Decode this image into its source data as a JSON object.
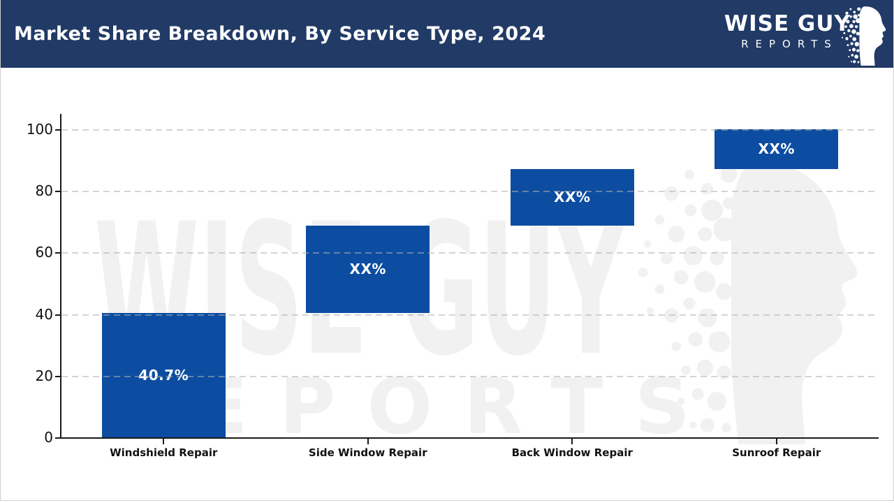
{
  "header": {
    "title": "Market Share Breakdown, By Service Type, 2024",
    "logo": {
      "name_line": "WISE GUY",
      "reports_line": "REPORTS"
    }
  },
  "watermark": {
    "name_line": "WISE GUY",
    "reports_line": "REPORTS"
  },
  "chart_data": {
    "type": "bar",
    "subtype": "waterfall",
    "title": "Market Share Breakdown, By Service Type, 2024",
    "categories": [
      "Windshield Repair",
      "Side Window Repair",
      "Back Window Repair",
      "Sunroof Repair"
    ],
    "segments": [
      {
        "category": "Windshield Repair",
        "start": 0,
        "end": 40.7,
        "label": "40.7%"
      },
      {
        "category": "Side Window Repair",
        "start": 40.7,
        "end": 69.0,
        "label": "XX%"
      },
      {
        "category": "Back Window Repair",
        "start": 69.0,
        "end": 87.3,
        "label": "XX%"
      },
      {
        "category": "Sunroof Repair",
        "start": 87.3,
        "end": 100.3,
        "label": "XX%"
      }
    ],
    "xlabel": "",
    "ylabel": "",
    "ylim": [
      0,
      100
    ],
    "yticks": [
      0,
      20,
      40,
      60,
      80,
      100
    ],
    "grid": "horizontal-dashed",
    "legend": "none",
    "bar_color": "#0d4da1",
    "bar_label_color": "#ffffff"
  },
  "colors": {
    "header_bg": "#213a66",
    "accent_blue": "#0d4da1",
    "watermark_gray": "#f1f1f2",
    "grid_gray": "#b0b0b0",
    "axis_black": "#1a1a1a"
  }
}
